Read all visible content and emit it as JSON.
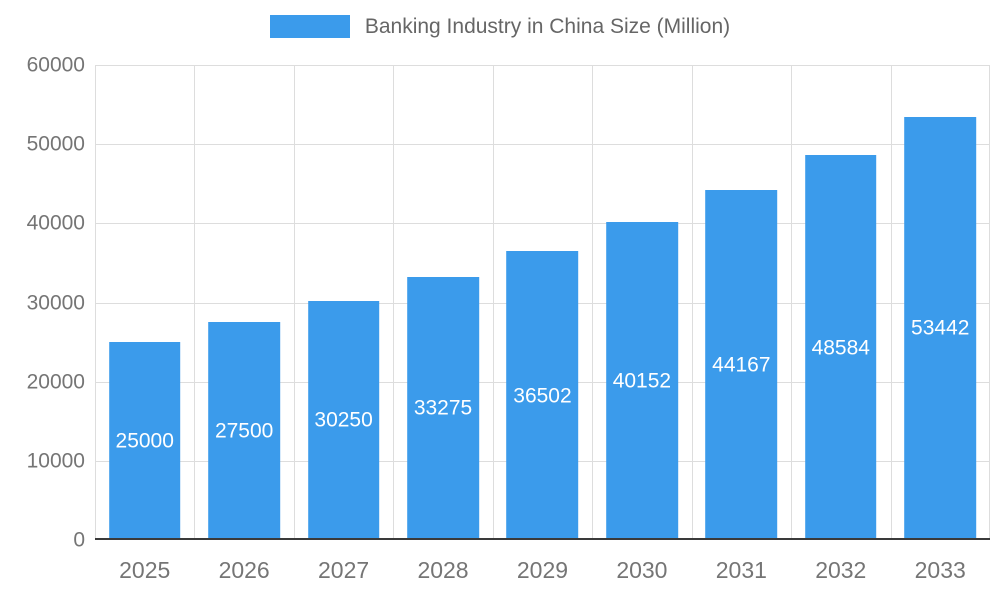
{
  "chart_data": {
    "type": "bar",
    "title": "Banking Industry in China Size (Million)",
    "categories": [
      "2025",
      "2026",
      "2027",
      "2028",
      "2029",
      "2030",
      "2031",
      "2032",
      "2033"
    ],
    "values": [
      25000,
      27500,
      30250,
      33275,
      36502,
      40152,
      44167,
      48584,
      53442
    ],
    "bar_labels": [
      "25000",
      "27500",
      "30250",
      "33275",
      "36502",
      "40152",
      "44167",
      "48584",
      "53442"
    ],
    "xlabel": "",
    "ylabel": "",
    "ylim": [
      0,
      60000
    ],
    "yticks": [
      0,
      10000,
      20000,
      30000,
      40000,
      50000,
      60000
    ],
    "grid": true,
    "legend_position": "top",
    "bar_label_color": "#FFFFFF"
  },
  "colors": {
    "bar": "#3B9BEB",
    "grid": "#DDDDDD",
    "baseline": "#3A3A3A",
    "tick_text": "#757575",
    "title_text": "#666666",
    "background": "#FFFFFF"
  }
}
